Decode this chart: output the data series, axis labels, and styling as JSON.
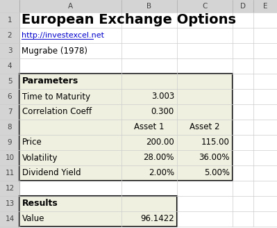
{
  "title": "European Exchange Options",
  "link": "http://investexcel.net",
  "subtitle": "Mugrabe (1978)",
  "params_label": "Parameters",
  "results_label": "Results",
  "col_headers": [
    "A",
    "B",
    "C",
    "D",
    "E"
  ],
  "row_numbers": [
    "1",
    "2",
    "3",
    "4",
    "5",
    "6",
    "7",
    "8",
    "9",
    "10",
    "11",
    "12",
    "13",
    "14"
  ],
  "bg_color": "#f0f0e0",
  "border_color": "#000000",
  "link_color": "#0000cc",
  "header_bg": "#d4d4d4",
  "title_color": "#000000",
  "fig_bg": "#ffffff",
  "scalar_params": [
    [
      "Time to Maturity",
      "3.003"
    ],
    [
      "Correlation Coeff",
      "0.300"
    ]
  ],
  "asset_params": [
    [
      "Price",
      "200.00",
      "115.00"
    ],
    [
      "Volatility",
      "28.00%",
      "36.00%"
    ],
    [
      "Dividend Yield",
      "2.00%",
      "5.00%"
    ]
  ],
  "result_value": "96.1422"
}
